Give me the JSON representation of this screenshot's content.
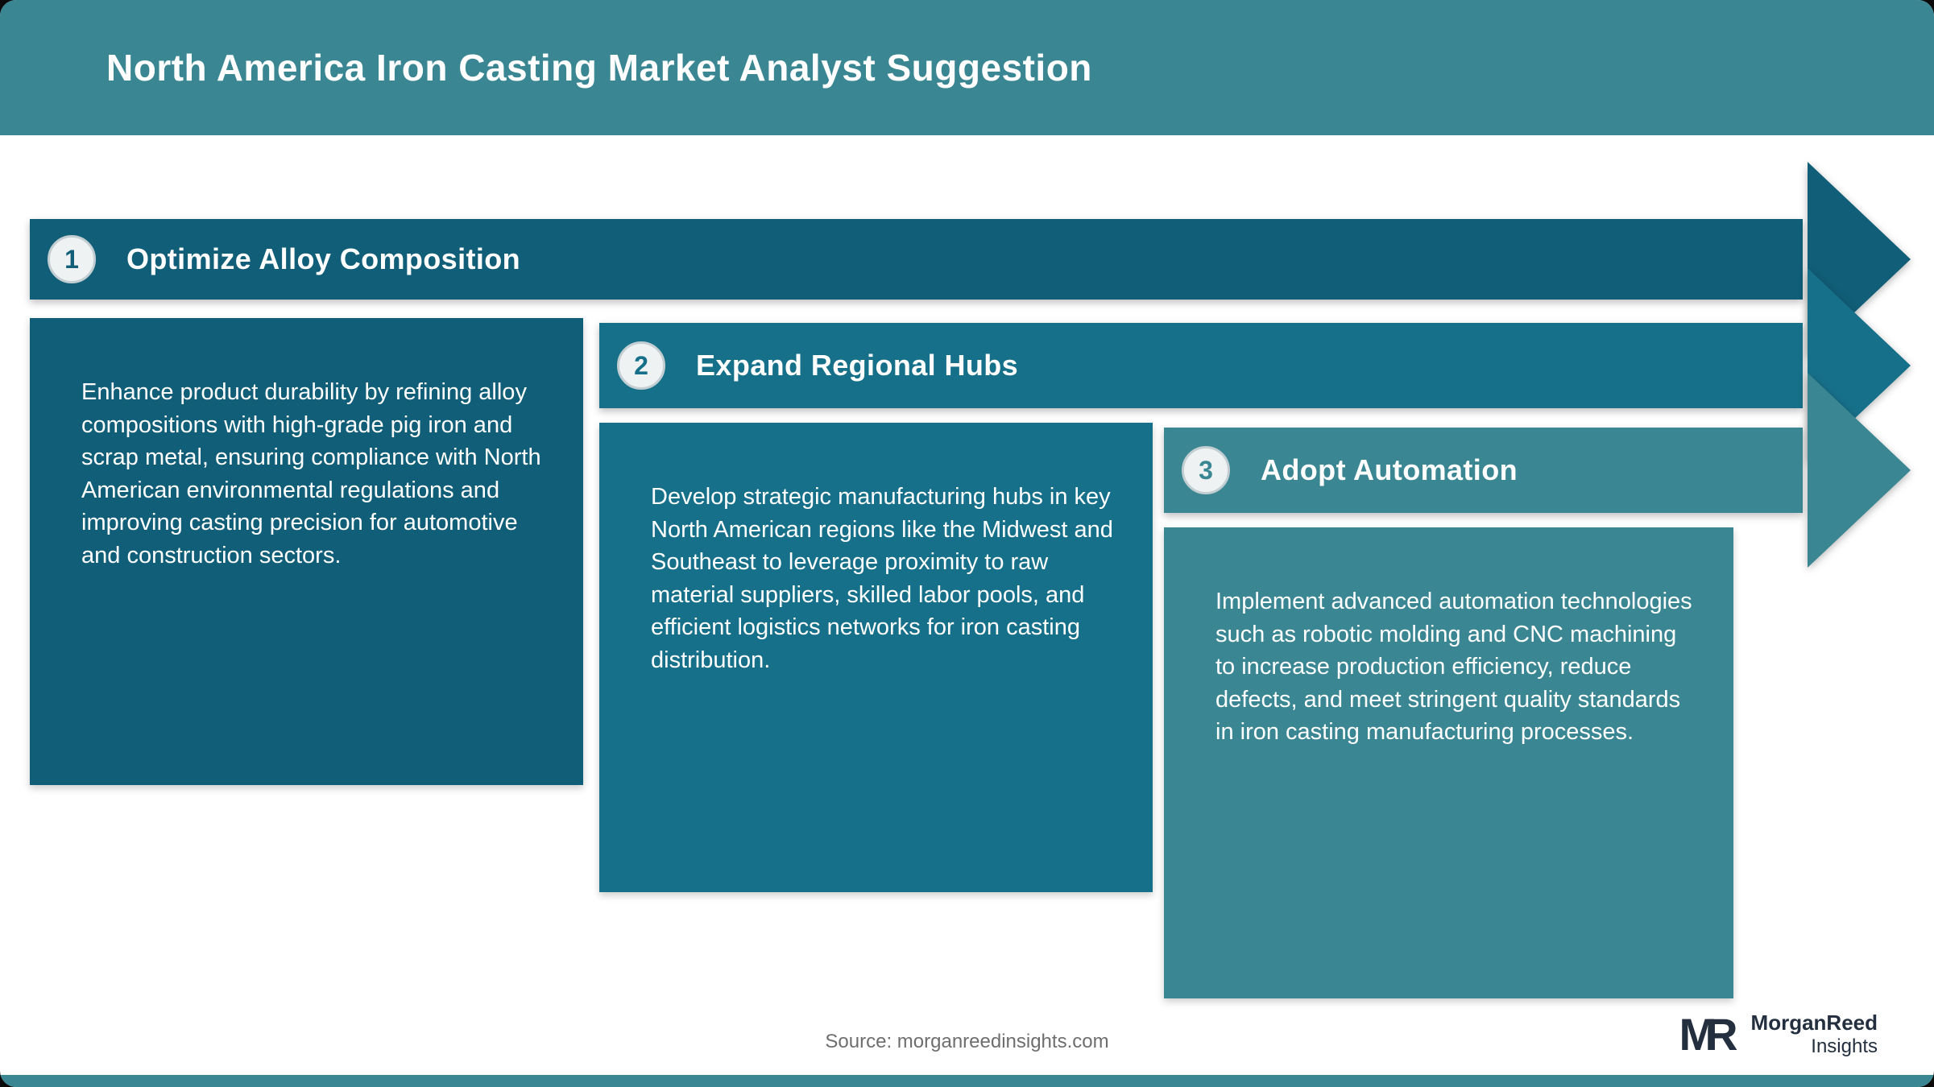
{
  "page": {
    "title": "North America Iron Casting Market Analyst Suggestion",
    "source": "Source: morganreedinsights.com",
    "brand": {
      "monogram": "MR",
      "name": "MorganReed",
      "tagline": "Insights"
    }
  },
  "colors": {
    "header_teal": "#3A8793",
    "step1": "#115E78",
    "step2": "#17708A",
    "step3": "#3A8793",
    "badge_bg": "#EEF2F3",
    "source_text": "#6E6E6E",
    "brand_ink": "#232F3E"
  },
  "suggestions": [
    {
      "number": "1",
      "title": "Optimize Alloy Composition",
      "description": "Enhance product durability by refining alloy compositions with high-grade pig iron and scrap metal, ensuring compliance with North American environmental regulations and improving casting precision for automotive and construction sectors."
    },
    {
      "number": "2",
      "title": "Expand Regional Hubs",
      "description": "Develop strategic manufacturing hubs in key North American regions like the Midwest and Southeast to leverage proximity to raw material suppliers, skilled labor pools, and efficient logistics networks for iron casting distribution."
    },
    {
      "number": "3",
      "title": "Adopt Automation",
      "description": "Implement advanced automation technologies such as robotic molding and CNC machining to increase production efficiency, reduce defects, and meet stringent quality standards in iron casting manufacturing processes."
    }
  ]
}
